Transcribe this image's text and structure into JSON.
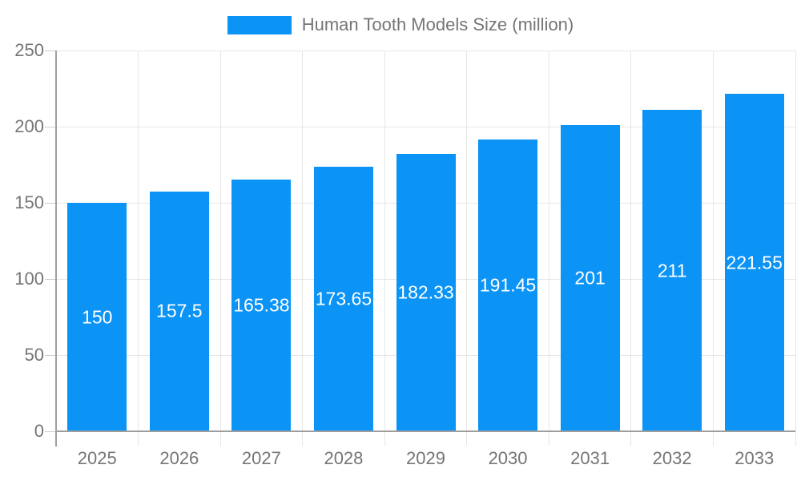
{
  "legend": {
    "label": "Human Tooth Models Size (million)"
  },
  "colors": {
    "bar": "#0b93f6",
    "value_label": "#ffffff",
    "axis_text": "#757575",
    "axis_line": "#9e9e9e",
    "gridline": "#e6e6e6",
    "tick": "#cccccc",
    "background": "#ffffff"
  },
  "chart_data": {
    "type": "bar",
    "title": "Human Tooth Models Size (million)",
    "categories": [
      "2025",
      "2026",
      "2027",
      "2028",
      "2029",
      "2030",
      "2031",
      "2032",
      "2033"
    ],
    "values": [
      150,
      157.5,
      165.38,
      173.65,
      182.33,
      191.45,
      201,
      211,
      221.55
    ],
    "value_labels": [
      "150",
      "157.5",
      "165.38",
      "173.65",
      "182.33",
      "191.45",
      "201",
      "211",
      "221.55"
    ],
    "xlabel": "",
    "ylabel": "",
    "ylim": [
      0,
      250
    ],
    "yticks": [
      0,
      50,
      100,
      150,
      200,
      250
    ],
    "ytick_labels": [
      "0",
      "50",
      "100",
      "150",
      "200",
      "250"
    ],
    "grid": true,
    "legend_position": "top",
    "value_labels_inside_bars": true,
    "bar_color": "#0b93f6"
  }
}
